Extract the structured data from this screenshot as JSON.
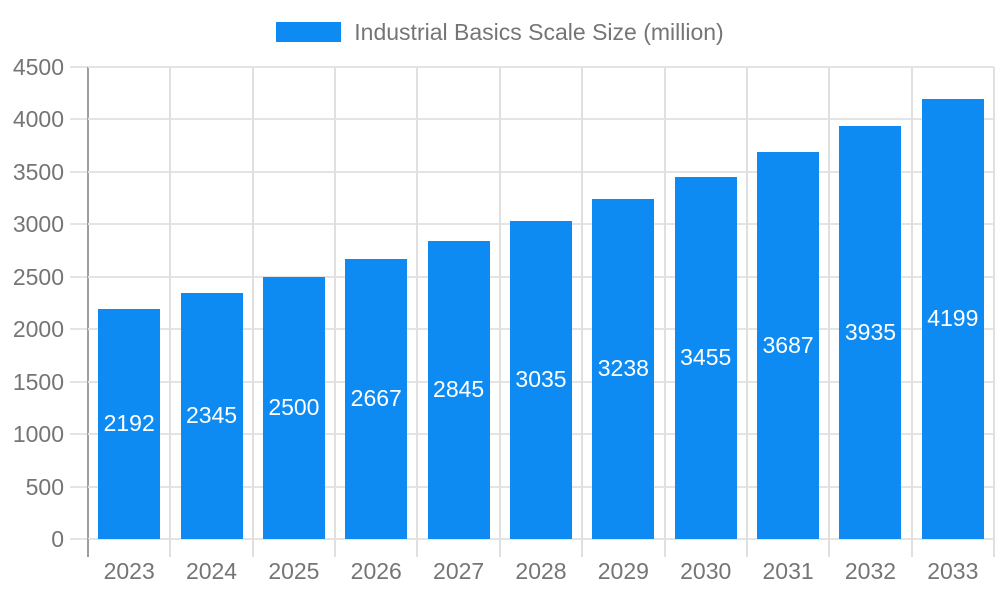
{
  "chart": {
    "background": "#ffffff"
  },
  "chart_data": {
    "type": "bar",
    "title": "Industrial Basics Scale Size (million)",
    "categories": [
      "2023",
      "2024",
      "2025",
      "2026",
      "2027",
      "2028",
      "2029",
      "2030",
      "2031",
      "2032",
      "2033"
    ],
    "values": [
      2192,
      2345,
      2500,
      2667,
      2845,
      3035,
      3238,
      3455,
      3687,
      3935,
      4199
    ],
    "xlabel": "",
    "ylabel": "",
    "ylim": [
      0,
      4500
    ],
    "yticks": [
      0,
      500,
      1000,
      1500,
      2000,
      2500,
      3000,
      3500,
      4000,
      4500
    ],
    "grid": true,
    "legend_position": "top",
    "bar_color": "#0d8bf2",
    "bar_label_color": "#ffffff",
    "axis_text_color": "#757575",
    "grid_color": "#e4e4e4",
    "vgrid_color": "#e0e0e0",
    "axis_line_color": "#9e9e9e"
  }
}
